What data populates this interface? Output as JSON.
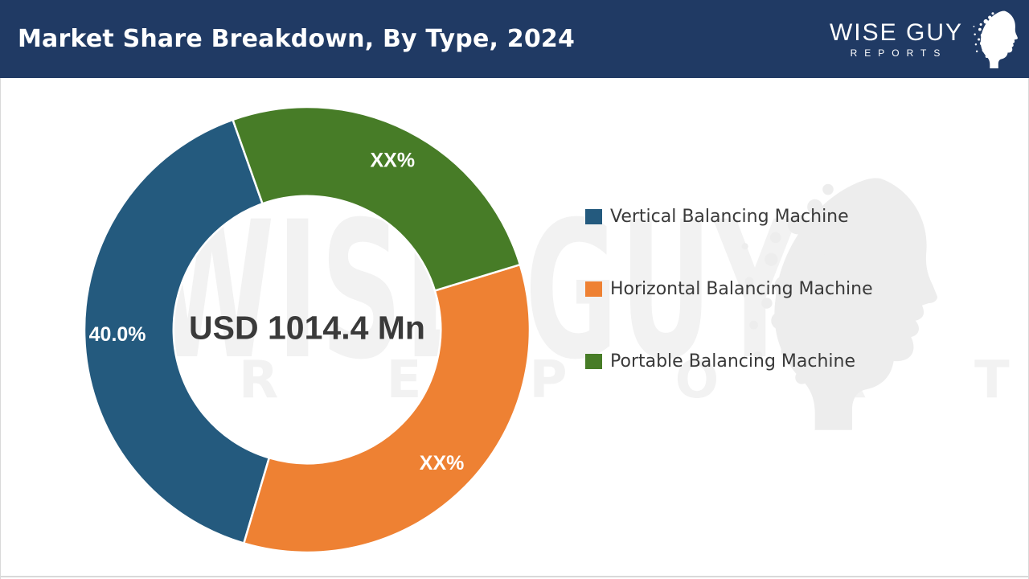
{
  "header": {
    "title": "Market Share Breakdown, By Type, 2024",
    "background_color": "#203a64",
    "brand": {
      "line1": "WISE GUY",
      "line2": "REPORTS"
    }
  },
  "chart_data": {
    "type": "pie",
    "subtype": "donut",
    "title": "Market Share Breakdown, By Type, 2024",
    "center_label": "USD 1014.4 Mn",
    "start_angle_deg": 109.5,
    "direction": "counterclockwise",
    "inner_radius_ratio": 0.6,
    "legend_position": "right",
    "segments": [
      {
        "label": "Vertical Balancing Machine",
        "value_pct": 40.0,
        "display_pct": "40.0%",
        "color": "#245a7e"
      },
      {
        "label": "Horizontal Balancing Machine",
        "value_pct": 34.3,
        "display_pct": "XX%",
        "color": "#ee8133"
      },
      {
        "label": "Portable Balancing Machine",
        "value_pct": 25.7,
        "display_pct": "XX%",
        "color": "#477c27"
      }
    ]
  },
  "watermark": {
    "line1": "WISE GUY",
    "line2": "R E P O R T S"
  },
  "colors": {
    "hairline": "#d9d9d9",
    "legend_text": "#3a3a3a",
    "watermark_text": "#f2f2f2",
    "watermark_head": "#ededed"
  }
}
